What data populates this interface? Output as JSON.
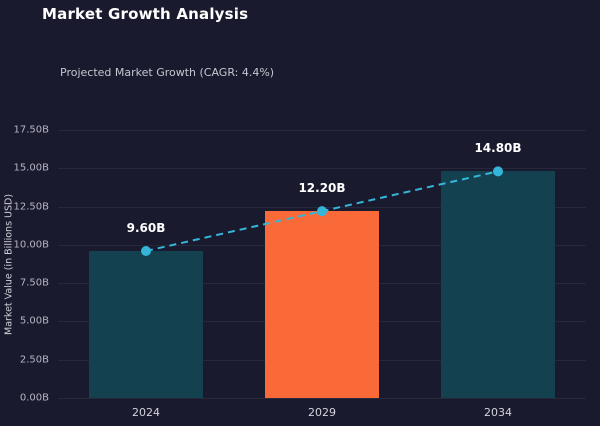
{
  "header": {
    "title": "Market Growth Analysis",
    "subtitle": "Projected Market Growth (CAGR: 4.4%)"
  },
  "chart_data": {
    "type": "bar",
    "title": "Market Growth Analysis",
    "subtitle": "Projected Market Growth (CAGR: 4.4%)",
    "categories": [
      "2024",
      "2029",
      "2034"
    ],
    "values": [
      9.6,
      12.2,
      14.8
    ],
    "value_labels": [
      "9.60B",
      "12.20B",
      "14.80B"
    ],
    "xlabel": "",
    "ylabel": "Market Value (in Billions USD)",
    "ylim": [
      0,
      17.5
    ],
    "yticks": [
      0,
      2.5,
      5,
      7.5,
      10,
      12.5,
      15,
      17.5
    ],
    "ytick_labels": [
      "0.00B",
      "2.50B",
      "5.00B",
      "7.50B",
      "10.00B",
      "12.50B",
      "15.00B",
      "17.50B"
    ],
    "grid": true,
    "legend": false,
    "trend_line": true,
    "colors": {
      "background": "#1a1a2e",
      "bar_colors": [
        "#14414f",
        "#fa6a38",
        "#14414f"
      ],
      "line_color": "#35b6d9",
      "marker_color": "#35b6d9",
      "grid_color": "#28283c",
      "title_color": "#ffffff",
      "label_color": "#ffffff"
    }
  }
}
